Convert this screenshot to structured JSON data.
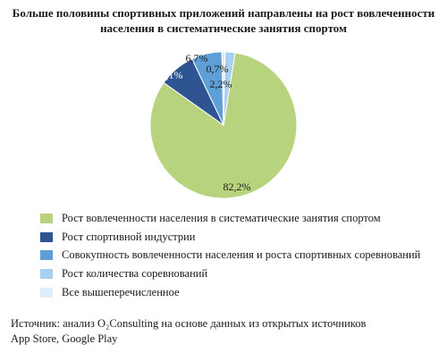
{
  "title_lines": [
    "Больше половины спортивных приложений направлены на рост вовлеченности",
    "населения в систематические занятия спортом"
  ],
  "chart_data": {
    "type": "pie",
    "title": "Больше половины спортивных приложений направлены на рост вовлеченности населения в систематические занятия спортом",
    "slices": [
      {
        "label": "Рост вовлеченности населения в систематические занятия спортом",
        "value": 82.2,
        "value_label": "82,2%",
        "color": "#b7d37d"
      },
      {
        "label": "Рост спортивной индустрии",
        "value": 8.1,
        "value_label": "8,1%",
        "color": "#2e5591"
      },
      {
        "label": "Совокупность вовлеченности населения и роста спортивных соревнований",
        "value": 6.7,
        "value_label": "6,7%",
        "color": "#5f9fd8"
      },
      {
        "label": "Рост количества соревнований",
        "value": 2.2,
        "value_label": "2,2%",
        "color": "#a9cfee"
      },
      {
        "label": "Все вышеперечисленное",
        "value": 0.7,
        "value_label": "0,7%",
        "color": "#ddeefa"
      }
    ],
    "legend_position": "bottom"
  },
  "source_lines": [
    "Источник: анализ O₂Consulting на основе данных из открытых источников",
    "App Store, Google Play"
  ]
}
